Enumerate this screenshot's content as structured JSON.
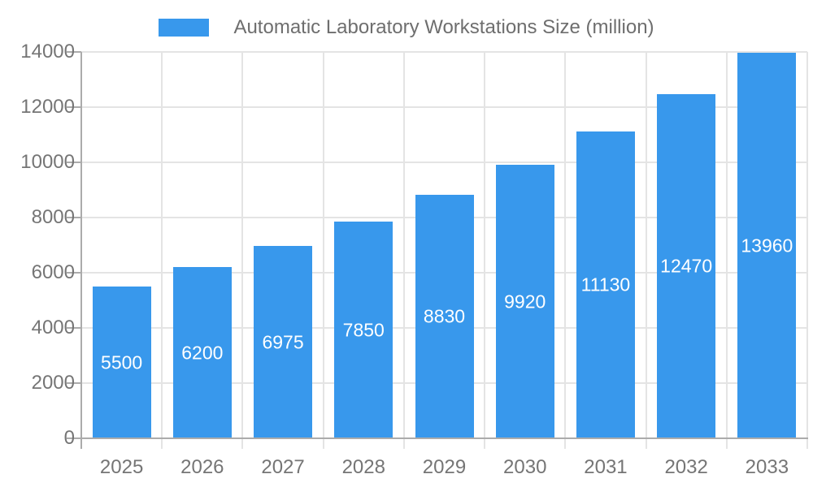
{
  "legend": {
    "label": "Automatic Laboratory Workstations Size (million)"
  },
  "chart_data": {
    "type": "bar",
    "title": "Automatic Laboratory Workstations Size (million)",
    "categories": [
      "2025",
      "2026",
      "2027",
      "2028",
      "2029",
      "2030",
      "2031",
      "2032",
      "2033"
    ],
    "values": [
      5500,
      6200,
      6975,
      7850,
      8830,
      9920,
      11130,
      12470,
      13960
    ],
    "xlabel": "",
    "ylabel": "",
    "ylim": [
      0,
      14000
    ],
    "yticks": [
      0,
      2000,
      4000,
      6000,
      8000,
      10000,
      12000,
      14000
    ],
    "grid": true,
    "legend_position": "top",
    "value_labels": "inside-center"
  },
  "colors": {
    "bar": "#3898EC",
    "value_label": "#FFFFFF",
    "axis_label": "#757575",
    "legend_text": "#6E6E6E",
    "grid_line": "#E4E4E4",
    "axis_line": "#ABABAB",
    "background": "#FFFFFF"
  }
}
